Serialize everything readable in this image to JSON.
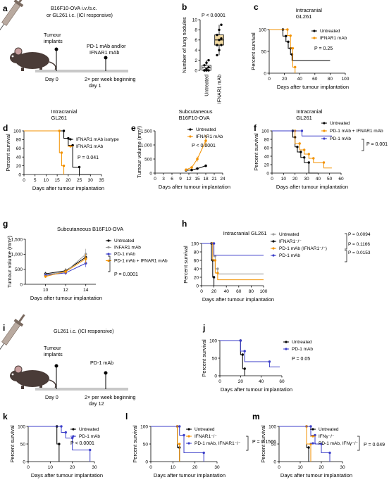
{
  "colors": {
    "black": "#000000",
    "orange": "#f39200",
    "blue": "#3b3ec9",
    "grey": "#999999",
    "gold": "#f0d8a0",
    "mouse": "#4a3c38",
    "timeline": "#c8c8c8",
    "syringe": "#b9aaa0"
  },
  "panels": {
    "a": {
      "letter": "a",
      "injection": [
        "B16F10-OVA i.v./s.c.",
        "or GL261 i.c. (ICI responsive)"
      ],
      "implant": [
        "Tumour",
        "implants"
      ],
      "treatment": [
        "PD-1 mAb and/or",
        "IFNAR1 mAb"
      ],
      "day0": "Day 0",
      "schedule": [
        "2× per week beginning",
        "day 1"
      ]
    },
    "i": {
      "letter": "i",
      "injection": [
        "GL261 i.c. (ICI responsive)"
      ],
      "implant": [
        "Tumour",
        "implants"
      ],
      "treatment": [
        "PD-1 mAb"
      ],
      "day0": "Day 0",
      "schedule": [
        "2× per week beginning",
        "day 12"
      ]
    }
  },
  "chart_data": [
    {
      "id": "b",
      "letter": "b",
      "type": "box",
      "ylabel": "Number of lung nodules",
      "categories": [
        "Untreated",
        "IFNAR1 mAb"
      ],
      "ylim": [
        0,
        10
      ],
      "yticks": [
        0,
        2,
        4,
        6,
        8,
        10
      ],
      "annotation": "P < 0.0001",
      "boxes": [
        {
          "name": "Untreated",
          "q1": 0,
          "median": 0.5,
          "q3": 1,
          "min": 0,
          "max": 2
        },
        {
          "name": "IFNAR1 mAb",
          "q1": 5,
          "median": 6,
          "q3": 7,
          "min": 3,
          "max": 9
        }
      ],
      "points": [
        {
          "group": 0,
          "values": [
            0,
            0,
            0,
            0,
            0.3,
            0.6,
            1,
            1.5,
            2
          ]
        },
        {
          "group": 1,
          "values": [
            3,
            4,
            5,
            5,
            6,
            6.3,
            7,
            8,
            9
          ]
        }
      ]
    },
    {
      "id": "c",
      "letter": "c",
      "type": "line",
      "title": [
        "Intracranial",
        "GL261"
      ],
      "xlabel": "Days after tumour implantation",
      "ylabel": "Percent survival",
      "xlim": [
        0,
        100
      ],
      "xticks": [
        0,
        20,
        40,
        60,
        80,
        100
      ],
      "ylim": [
        0,
        100
      ],
      "yticks": [
        0,
        50,
        100
      ],
      "annotation": "P = 0.25",
      "series": [
        {
          "name": "Untreated",
          "color": "#000000",
          "x": [
            0,
            18,
            18,
            22,
            22,
            25,
            25,
            28,
            28,
            30,
            30,
            80
          ],
          "y": [
            100,
            100,
            85,
            85,
            72,
            72,
            57,
            57,
            43,
            43,
            29,
            29
          ]
        },
        {
          "name": "IFNAR1 mAb",
          "color": "#f39200",
          "x": [
            0,
            24,
            24,
            28,
            28,
            31,
            31,
            34,
            34
          ],
          "y": [
            100,
            100,
            86,
            86,
            57,
            57,
            14,
            14,
            0
          ]
        }
      ]
    },
    {
      "id": "d",
      "letter": "d",
      "type": "line",
      "title": [
        "Intracranial",
        "GL261"
      ],
      "xlabel": "Days after tumour implantation",
      "ylabel": "Percent survival",
      "xlim": [
        0,
        35
      ],
      "xticks": [
        0,
        5,
        10,
        15,
        20,
        25,
        30,
        35
      ],
      "ylim": [
        0,
        100
      ],
      "yticks": [
        0,
        20,
        40,
        60,
        80,
        100
      ],
      "annotation": "P = 0.041",
      "series": [
        {
          "name": "IFNAR1 mAb isotype",
          "color": "#000000",
          "x": [
            0,
            18,
            18,
            20,
            20,
            22,
            22,
            25,
            25,
            30
          ],
          "y": [
            100,
            100,
            83,
            83,
            67,
            67,
            17,
            17,
            0,
            0
          ]
        },
        {
          "name": "IFNAR1 mAb",
          "color": "#f39200",
          "x": [
            0,
            16,
            16,
            17,
            17,
            18,
            18
          ],
          "y": [
            100,
            100,
            50,
            50,
            20,
            20,
            0
          ]
        }
      ]
    },
    {
      "id": "e",
      "letter": "e",
      "type": "line",
      "title": [
        "Subcutaneous",
        "B16F10-OVA"
      ],
      "xlabel": "Days after tumour implantation",
      "ylabel": "Tumour volume (mm³)",
      "xlim": [
        0,
        24
      ],
      "xticks": [
        0,
        3,
        6,
        9,
        12,
        15,
        18,
        21,
        24
      ],
      "ylim": [
        0,
        1500
      ],
      "yticks": [
        0,
        500,
        1000,
        1500
      ],
      "annotation": "P < 0.0001",
      "series": [
        {
          "name": "Untreated",
          "color": "#000000",
          "x": [
            11,
            13,
            15,
            18
          ],
          "y": [
            100,
            110,
            160,
            260
          ]
        },
        {
          "name": "IFNAR1 mAb",
          "color": "#f39200",
          "x": [
            11,
            13,
            15,
            18
          ],
          "y": [
            120,
            200,
            500,
            1150
          ]
        }
      ]
    },
    {
      "id": "f",
      "letter": "f",
      "type": "line",
      "title": [
        "Intracranial",
        "GL261"
      ],
      "xlabel": "Days after tumour implantation",
      "ylabel": "Percent survival",
      "xlim": [
        0,
        60
      ],
      "xticks": [
        0,
        10,
        20,
        30,
        40,
        50,
        60
      ],
      "ylim": [
        0,
        100
      ],
      "yticks": [
        0,
        20,
        40,
        60,
        80,
        100
      ],
      "annotation": "P = 0.001",
      "series": [
        {
          "name": "Untreated",
          "color": "#000000",
          "x": [
            0,
            18,
            18,
            20,
            20,
            22,
            22,
            25,
            25,
            28,
            28,
            32,
            32,
            40
          ],
          "y": [
            100,
            100,
            85,
            85,
            62,
            62,
            50,
            50,
            37,
            37,
            25,
            25,
            0,
            0
          ]
        },
        {
          "name": "PD-1 mAb + IFNAR1 mAb",
          "color": "#f39200",
          "x": [
            0,
            20,
            20,
            24,
            24,
            28,
            28,
            32,
            32,
            36,
            36,
            45,
            45,
            52
          ],
          "y": [
            100,
            100,
            70,
            70,
            55,
            55,
            45,
            45,
            35,
            35,
            25,
            25,
            12,
            12
          ]
        },
        {
          "name": "PD-1 mAb",
          "color": "#3b3ec9",
          "x": [
            0,
            26,
            26,
            52
          ],
          "y": [
            100,
            100,
            88,
            88
          ]
        }
      ]
    },
    {
      "id": "g",
      "letter": "g",
      "type": "line",
      "title": [
        "Subcutaneous B16F10-OVA"
      ],
      "xlabel": "Days after tumour implantation",
      "ylabel": "Tumour volume (mm³)",
      "xlim": [
        8,
        15
      ],
      "xticks": [
        10,
        12,
        14
      ],
      "ylim": [
        0,
        1500
      ],
      "yticks": [
        0,
        500,
        1000,
        1500
      ],
      "annotation": "P = 0.0001",
      "series": [
        {
          "name": "Untreated",
          "color": "#000000",
          "x": [
            10,
            12,
            14
          ],
          "y": [
            350,
            450,
            900
          ]
        },
        {
          "name": "INFAR1 mAb",
          "color": "#999999",
          "x": [
            10,
            12,
            14
          ],
          "y": [
            320,
            420,
            1000
          ]
        },
        {
          "name": "PD-1 mAb",
          "color": "#3b3ec9",
          "x": [
            10,
            12,
            14
          ],
          "y": [
            300,
            380,
            700
          ]
        },
        {
          "name": "PD-1 mAb + IFNAR1 mAb",
          "color": "#f39200",
          "x": [
            10,
            12,
            14
          ],
          "y": [
            260,
            420,
            850
          ]
        }
      ]
    },
    {
      "id": "h",
      "letter": "h",
      "type": "line",
      "title": [
        "Intracranial GL261"
      ],
      "xlabel": "Days after tumour implantation",
      "ylabel": "Percent survival",
      "xlim": [
        0,
        100
      ],
      "xticks": [
        0,
        20,
        40,
        60,
        80,
        100
      ],
      "ylim": [
        0,
        100
      ],
      "yticks": [
        0,
        20,
        40,
        60,
        80,
        100
      ],
      "annotations": [
        "P = 0.0094",
        "P = 0.1166",
        "P = 0.0153"
      ],
      "series": [
        {
          "name": "Untreated",
          "color": "#999999",
          "x": [
            0,
            18,
            18,
            22,
            22,
            26,
            26,
            100
          ],
          "y": [
            100,
            100,
            70,
            70,
            40,
            40,
            28,
            28
          ]
        },
        {
          "name": "IFNAR1⁻/⁻",
          "color": "#000000",
          "x": [
            0,
            16,
            16,
            18,
            18,
            20,
            20
          ],
          "y": [
            100,
            100,
            60,
            60,
            20,
            20,
            0
          ]
        },
        {
          "name": "PD-1 mAb (IFNAR1⁻/⁻)",
          "color": "#f39200",
          "x": [
            0,
            18,
            18,
            22,
            22,
            26,
            26,
            100
          ],
          "y": [
            100,
            100,
            60,
            60,
            30,
            30,
            14,
            14
          ]
        },
        {
          "name": "PD-1 mAb",
          "color": "#3b3ec9",
          "x": [
            0,
            20,
            20,
            100
          ],
          "y": [
            100,
            100,
            72,
            72
          ]
        }
      ]
    },
    {
      "id": "j",
      "letter": "j",
      "type": "line",
      "xlabel": "Days after tumour implantation",
      "ylabel": "Percent survival",
      "xlim": [
        0,
        60
      ],
      "xticks": [
        0,
        20,
        40,
        60
      ],
      "ylim": [
        0,
        100
      ],
      "yticks": [
        0,
        50,
        100
      ],
      "annotation": "P = 0.05",
      "series": [
        {
          "name": "Untreated",
          "color": "#000000",
          "x": [
            0,
            20,
            20,
            22,
            22,
            24,
            24
          ],
          "y": [
            100,
            100,
            60,
            60,
            20,
            20,
            0
          ]
        },
        {
          "name": "PD-1 mAb",
          "color": "#3b3ec9",
          "x": [
            0,
            20,
            20,
            24,
            24,
            48,
            48,
            58
          ],
          "y": [
            100,
            100,
            70,
            70,
            40,
            40,
            25,
            25
          ]
        }
      ]
    },
    {
      "id": "k",
      "letter": "k",
      "type": "line",
      "xlabel": "Days after tumour implantation",
      "ylabel": "Percent survival",
      "xlim": [
        0,
        30
      ],
      "xticks": [
        0,
        10,
        20,
        30
      ],
      "ylim": [
        0,
        100
      ],
      "yticks": [
        0,
        50,
        100
      ],
      "annotation": "P < 0.0001",
      "series": [
        {
          "name": "Untreated",
          "color": "#000000",
          "x": [
            0,
            13,
            13,
            14,
            14
          ],
          "y": [
            100,
            100,
            50,
            50,
            0
          ]
        },
        {
          "name": "PD-1 mAb",
          "color": "#3b3ec9",
          "x": [
            0,
            15,
            15,
            17,
            17,
            20,
            20,
            28,
            28
          ],
          "y": [
            100,
            100,
            83,
            83,
            67,
            67,
            33,
            33,
            0
          ]
        }
      ]
    },
    {
      "id": "l",
      "letter": "l",
      "type": "line",
      "xlabel": "Days after tumour implantation",
      "ylabel": "Percent survival",
      "xlim": [
        0,
        30
      ],
      "xticks": [
        0,
        10,
        20,
        30
      ],
      "ylim": [
        0,
        100
      ],
      "yticks": [
        0,
        50,
        100
      ],
      "annotation": "P = 0.1566",
      "series": [
        {
          "name": "Untreated",
          "color": "#000000",
          "x": [
            0,
            12,
            12,
            13,
            13
          ],
          "y": [
            100,
            100,
            40,
            40,
            0
          ]
        },
        {
          "name": "IFNAR1⁻/⁻",
          "color": "#f39200",
          "x": [
            0,
            12,
            12,
            13,
            13
          ],
          "y": [
            100,
            100,
            50,
            50,
            0
          ]
        },
        {
          "name": "PD-1 mAb, IFNAR1⁻/⁻",
          "color": "#3b3ec9",
          "x": [
            0,
            13,
            13,
            15,
            15,
            24,
            24
          ],
          "y": [
            100,
            100,
            75,
            75,
            25,
            25,
            0
          ]
        }
      ]
    },
    {
      "id": "m",
      "letter": "m",
      "type": "line",
      "xlabel": "Days after tumour implantation",
      "ylabel": "Percent survival",
      "xlim": [
        0,
        30
      ],
      "xticks": [
        0,
        10,
        20,
        30
      ],
      "ylim": [
        0,
        100
      ],
      "yticks": [
        0,
        50,
        100
      ],
      "annotation": "P = 0.049",
      "series": [
        {
          "name": "Untreated",
          "color": "#000000",
          "x": [
            0,
            13,
            13,
            14,
            14
          ],
          "y": [
            100,
            100,
            40,
            40,
            0
          ]
        },
        {
          "name": "IFNγ⁻/⁻",
          "color": "#f39200",
          "x": [
            0,
            13,
            13,
            15,
            15
          ],
          "y": [
            100,
            100,
            50,
            50,
            0
          ]
        },
        {
          "name": "PD-1 mAb, IFNγ⁻/⁻",
          "color": "#3b3ec9",
          "x": [
            0,
            15,
            15,
            17,
            17,
            20,
            20,
            24,
            24
          ],
          "y": [
            100,
            100,
            75,
            75,
            50,
            50,
            25,
            25,
            0
          ]
        }
      ]
    }
  ]
}
